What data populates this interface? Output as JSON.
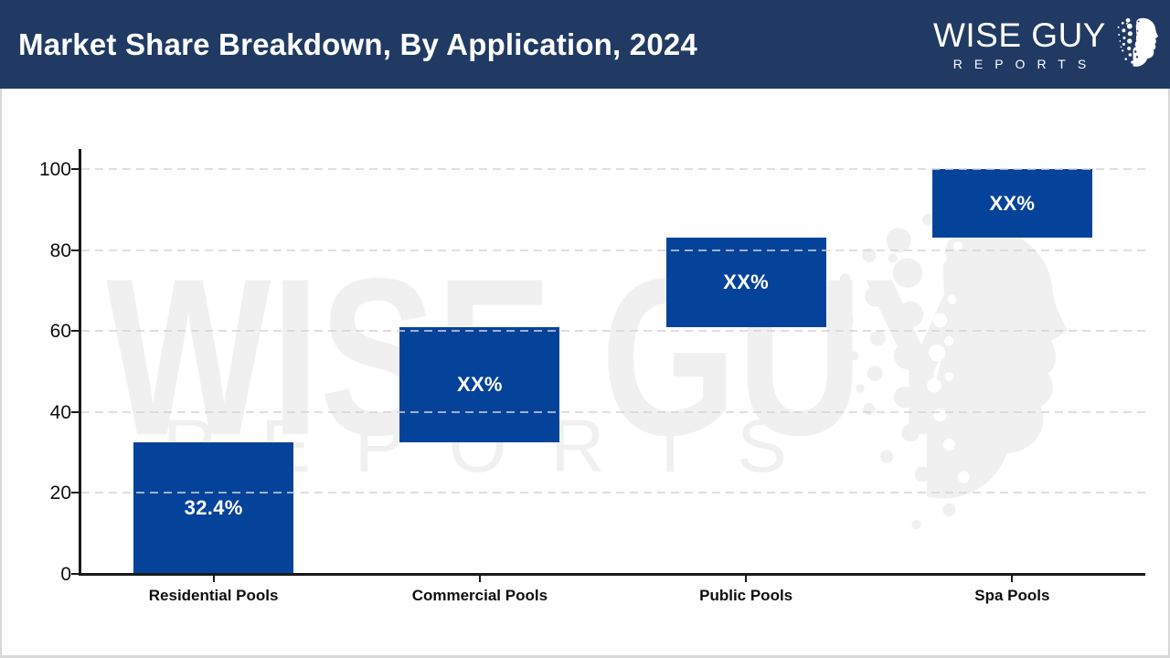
{
  "header": {
    "title": "Market Share Breakdown, By Application, 2024",
    "bg_color": "#203a64",
    "logo": {
      "line1": "WISE GUY",
      "line2": "REPORTS"
    }
  },
  "watermark": {
    "line1": "WISE GUY",
    "line2": "REPORTS"
  },
  "chart_data": {
    "type": "bar",
    "subtype": "floating-segment-waterfall",
    "title": "Market Share Breakdown, By Application, 2024",
    "categories": [
      "Residential Pools",
      "Commercial Pools",
      "Public Pools",
      "Spa Pools"
    ],
    "segments": [
      {
        "category": "Residential Pools",
        "start": 0,
        "end": 32.4,
        "label": "32.4%"
      },
      {
        "category": "Commercial Pools",
        "start": 32.4,
        "end": 61,
        "label": "XX%"
      },
      {
        "category": "Public Pools",
        "start": 61,
        "end": 83,
        "label": "XX%"
      },
      {
        "category": "Spa Pools",
        "start": 83,
        "end": 100,
        "label": "XX%"
      }
    ],
    "xlabel": "",
    "ylabel": "",
    "ylim": [
      0,
      100
    ],
    "yticks": [
      0,
      20,
      40,
      60,
      80,
      100
    ],
    "grid": {
      "visible": true,
      "axis": "y",
      "style": "dashed",
      "color": "#d8d8d8"
    },
    "legend": "none",
    "bar_color": "#05439b",
    "bar_label_color": "#ffffff",
    "axis_color": "#1a1a1a"
  }
}
